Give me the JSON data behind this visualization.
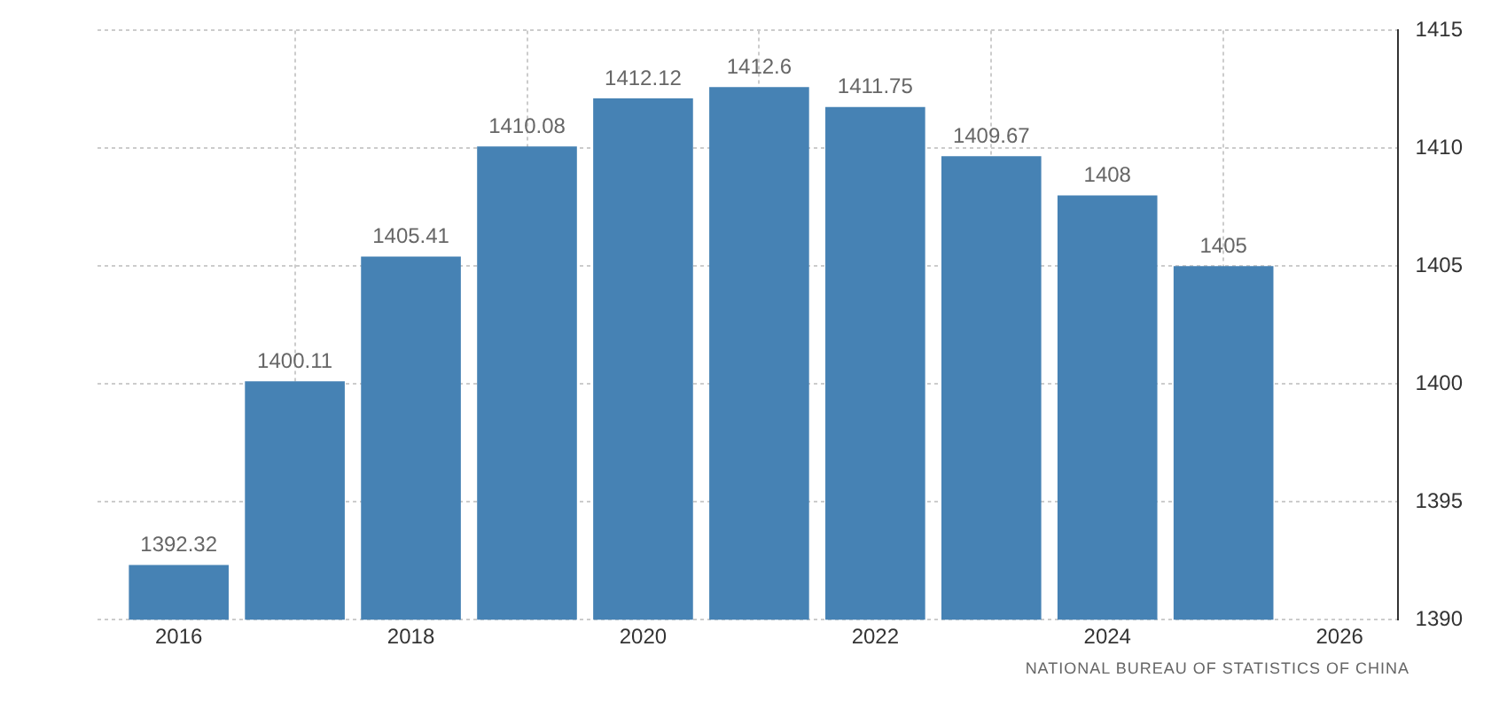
{
  "chart_data": {
    "type": "bar",
    "x": [
      2016,
      2017,
      2018,
      2019,
      2020,
      2021,
      2022,
      2023,
      2024,
      2025
    ],
    "values": [
      1392.32,
      1400.11,
      1405.41,
      1410.08,
      1412.12,
      1412.6,
      1411.75,
      1409.67,
      1408,
      1405
    ],
    "color": "#4682b4",
    "xlim": [
      2015.3,
      2026.5
    ],
    "xticks": [
      2016,
      2018,
      2020,
      2022,
      2024,
      2026
    ],
    "ylim": [
      1390,
      1415
    ],
    "yticks": [
      1390,
      1395,
      1400,
      1405,
      1410,
      1415
    ],
    "grid": true,
    "legend": false,
    "data_labels": true,
    "annotations": [
      "NATIONAL BUREAU OF STATISTICS OF CHINA"
    ]
  }
}
